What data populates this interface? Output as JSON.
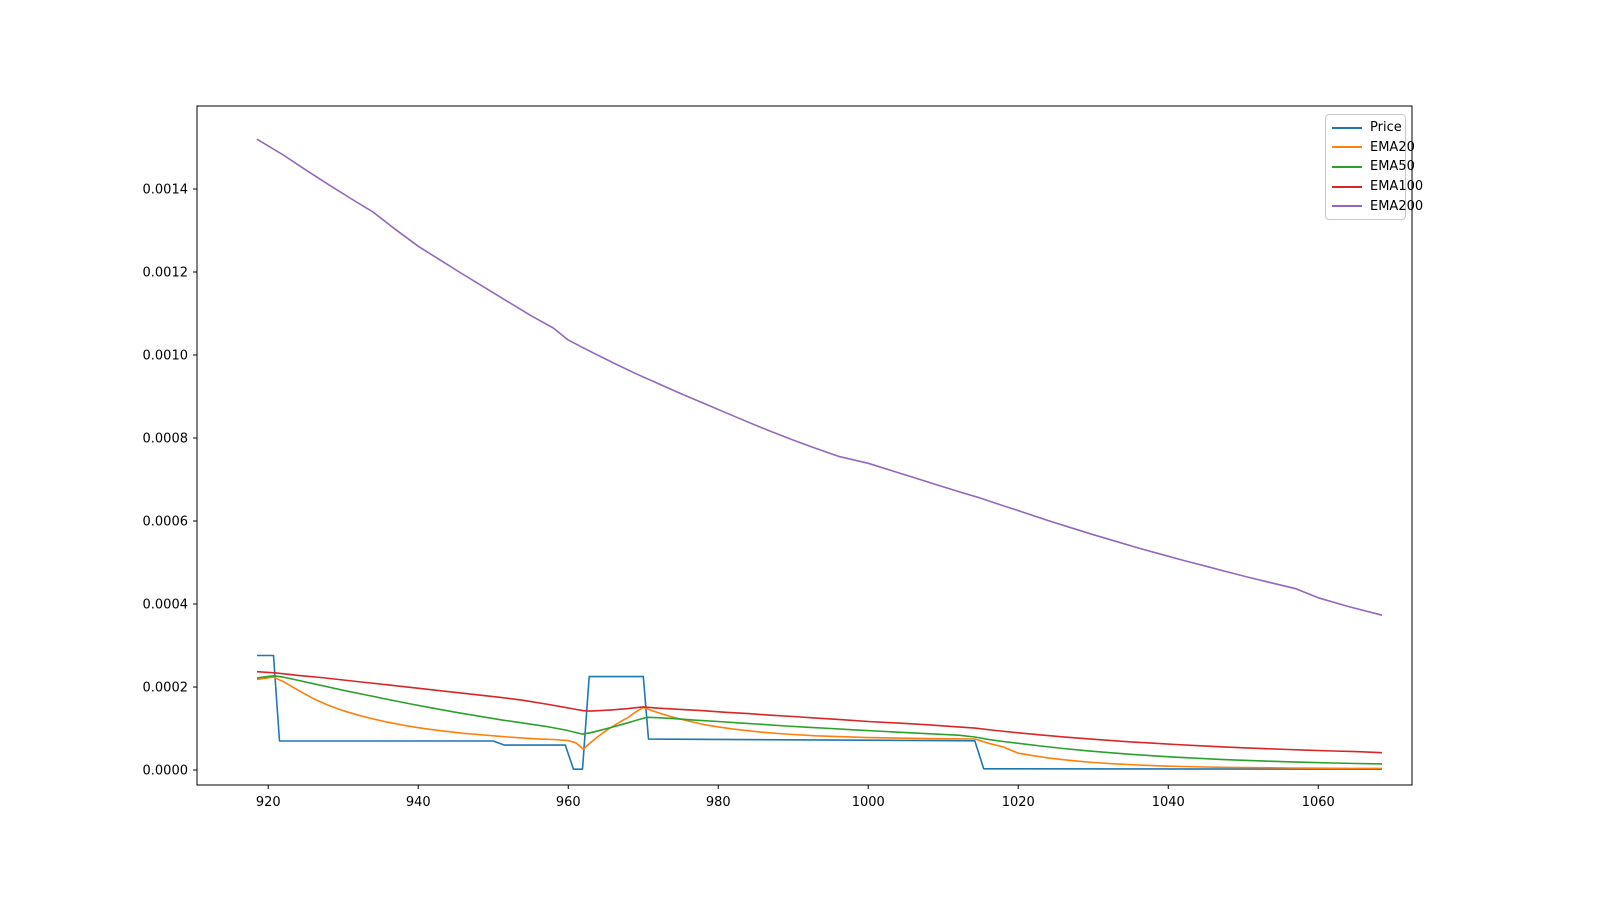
{
  "chart_data": {
    "type": "line",
    "title": "",
    "xlabel": "",
    "ylabel": "",
    "grid": false,
    "legend_position": "upper right",
    "xlim": [
      910.5,
      1072.5
    ],
    "ylim": [
      -3.61e-05,
      0.0016
    ],
    "x_ticks": [
      920,
      940,
      960,
      980,
      1000,
      1020,
      1040,
      1060
    ],
    "x_tick_labels": [
      "920",
      "940",
      "960",
      "980",
      "1000",
      "1020",
      "1040",
      "1060"
    ],
    "y_ticks": [
      0.0,
      0.0002,
      0.0004,
      0.0006,
      0.0008,
      0.001,
      0.0012,
      0.0014
    ],
    "y_tick_labels": [
      "0.0000",
      "0.0002",
      "0.0004",
      "0.0006",
      "0.0008",
      "0.0010",
      "0.0012",
      "0.0014"
    ],
    "series": [
      {
        "name": "Price",
        "color": "#1f77b4",
        "points": [
          [
            918.5,
            0.000276
          ],
          [
            920.7,
            0.000276
          ],
          [
            921.5,
            7e-05
          ],
          [
            950,
            7e-05
          ],
          [
            951.5,
            6e-05
          ],
          [
            959.6,
            6e-05
          ],
          [
            960.7,
            2e-06
          ],
          [
            961.9,
            2e-06
          ],
          [
            962.8,
            0.000225
          ],
          [
            970,
            0.000225
          ],
          [
            970.7,
            7.45e-05
          ],
          [
            1014.2,
            7.05e-05
          ],
          [
            1015.4,
            3e-06
          ],
          [
            1068.5,
            2e-06
          ]
        ]
      },
      {
        "name": "EMA20",
        "color": "#ff7f0e",
        "points": [
          [
            918.5,
            0.000218
          ],
          [
            920.7,
            0.000224
          ],
          [
            922,
            0.000213
          ],
          [
            924,
            0.000192
          ],
          [
            926,
            0.000172
          ],
          [
            928,
            0.000156
          ],
          [
            930,
            0.000143
          ],
          [
            932,
            0.000132
          ],
          [
            934,
            0.000123
          ],
          [
            936,
            0.000115
          ],
          [
            938,
            0.000108
          ],
          [
            940,
            0.000102
          ],
          [
            942,
            9.7e-05
          ],
          [
            944,
            9.25e-05
          ],
          [
            946,
            8.85e-05
          ],
          [
            948,
            8.55e-05
          ],
          [
            950,
            8.25e-05
          ],
          [
            952,
            7.95e-05
          ],
          [
            954,
            7.7e-05
          ],
          [
            956,
            7.5e-05
          ],
          [
            958,
            7.35e-05
          ],
          [
            960,
            7.1e-05
          ],
          [
            961,
            6.55e-05
          ],
          [
            962,
            5.05e-05
          ],
          [
            963,
            6.65e-05
          ],
          [
            964,
            8.1e-05
          ],
          [
            965,
            9.45e-05
          ],
          [
            966,
            0.000106
          ],
          [
            967,
            0.000117
          ],
          [
            968,
            0.000127
          ],
          [
            969,
            0.00014
          ],
          [
            970,
            0.000151
          ],
          [
            971,
            0.000144
          ],
          [
            972,
            0.000138
          ],
          [
            974,
            0.000127
          ],
          [
            976,
            0.000118
          ],
          [
            978,
            0.00011
          ],
          [
            980,
            0.000104
          ],
          [
            982,
            9.85e-05
          ],
          [
            984,
            9.45e-05
          ],
          [
            986,
            9.1e-05
          ],
          [
            988,
            8.8e-05
          ],
          [
            990,
            8.55e-05
          ],
          [
            993,
            8.25e-05
          ],
          [
            996,
            8.05e-05
          ],
          [
            1000,
            7.82e-05
          ],
          [
            1004,
            7.68e-05
          ],
          [
            1008,
            7.58e-05
          ],
          [
            1011,
            7.52e-05
          ],
          [
            1014.2,
            7.48e-05
          ],
          [
            1016,
            6.45e-05
          ],
          [
            1018,
            5.55e-05
          ],
          [
            1020,
            4.05e-05
          ],
          [
            1022,
            3.45e-05
          ],
          [
            1024,
            2.92e-05
          ],
          [
            1026,
            2.48e-05
          ],
          [
            1028,
            2.12e-05
          ],
          [
            1030,
            1.82e-05
          ],
          [
            1033,
            1.47e-05
          ],
          [
            1036,
            1.2e-05
          ],
          [
            1039,
            1e-05
          ],
          [
            1042,
            8.5e-06
          ],
          [
            1045,
            7.3e-06
          ],
          [
            1048,
            6.4e-06
          ],
          [
            1052,
            5.5e-06
          ],
          [
            1056,
            4.8e-06
          ],
          [
            1060,
            4.3e-06
          ],
          [
            1064,
            4e-06
          ],
          [
            1068.5,
            3.8e-06
          ]
        ]
      },
      {
        "name": "EMA50",
        "color": "#2ca02c",
        "points": [
          [
            918.5,
            0.000222
          ],
          [
            920.7,
            0.000227
          ],
          [
            922,
            0.000224
          ],
          [
            924,
            0.000216
          ],
          [
            926,
            0.000208
          ],
          [
            928,
            0.0002
          ],
          [
            930,
            0.000192
          ],
          [
            933,
            0.000181
          ],
          [
            936,
            0.00017
          ],
          [
            939,
            0.000159
          ],
          [
            942,
            0.000149
          ],
          [
            945,
            0.000139
          ],
          [
            948,
            0.00013
          ],
          [
            951,
            0.000121
          ],
          [
            954,
            0.000113
          ],
          [
            957,
            0.000105
          ],
          [
            959.6,
            9.65e-05
          ],
          [
            961.9,
            8.65e-05
          ],
          [
            963,
            9e-05
          ],
          [
            964,
            9.45e-05
          ],
          [
            966,
            0.000104
          ],
          [
            968,
            0.000114
          ],
          [
            969.5,
            0.000122
          ],
          [
            970.5,
            0.000127
          ],
          [
            972,
            0.000126
          ],
          [
            974,
            0.000124
          ],
          [
            977,
            0.00012
          ],
          [
            980,
            0.000117
          ],
          [
            983,
            0.000113
          ],
          [
            986,
            0.00011
          ],
          [
            989,
            0.000106
          ],
          [
            992,
            0.000103
          ],
          [
            995,
            0.0001
          ],
          [
            998,
            9.7e-05
          ],
          [
            1001,
            9.4e-05
          ],
          [
            1004,
            9.12e-05
          ],
          [
            1007,
            8.85e-05
          ],
          [
            1010,
            8.58e-05
          ],
          [
            1012,
            8.4e-05
          ],
          [
            1014.2,
            7.95e-05
          ],
          [
            1016,
            7.38e-05
          ],
          [
            1018,
            6.88e-05
          ],
          [
            1020,
            6.43e-05
          ],
          [
            1023,
            5.78e-05
          ],
          [
            1026,
            5.18e-05
          ],
          [
            1029,
            4.65e-05
          ],
          [
            1032,
            4.19e-05
          ],
          [
            1035,
            3.78e-05
          ],
          [
            1038,
            3.42e-05
          ],
          [
            1041,
            3.1e-05
          ],
          [
            1044,
            2.82e-05
          ],
          [
            1047,
            2.57e-05
          ],
          [
            1050,
            2.35e-05
          ],
          [
            1053,
            2.15e-05
          ],
          [
            1056,
            1.98e-05
          ],
          [
            1059,
            1.83e-05
          ],
          [
            1062,
            1.7e-05
          ],
          [
            1065,
            1.58e-05
          ],
          [
            1068.5,
            1.48e-05
          ]
        ]
      },
      {
        "name": "EMA100",
        "color": "#d62728",
        "points": [
          [
            918.5,
            0.000237
          ],
          [
            921,
            0.000234
          ],
          [
            924,
            0.000228
          ],
          [
            927,
            0.000223
          ],
          [
            930,
            0.000217
          ],
          [
            933,
            0.000211
          ],
          [
            936,
            0.000205
          ],
          [
            939,
            0.000199
          ],
          [
            942,
            0.000193
          ],
          [
            945,
            0.000187
          ],
          [
            948,
            0.000181
          ],
          [
            951,
            0.000175
          ],
          [
            954,
            0.000168
          ],
          [
            957,
            0.000159
          ],
          [
            959.6,
            0.000151
          ],
          [
            961,
            0.000146
          ],
          [
            962,
            0.000143
          ],
          [
            963,
            0.000142
          ],
          [
            964,
            0.000143
          ],
          [
            966,
            0.000145
          ],
          [
            968,
            0.000148
          ],
          [
            970,
            0.000152
          ],
          [
            972,
            0.000149
          ],
          [
            975,
            0.000146
          ],
          [
            978,
            0.000143
          ],
          [
            981,
            0.000139
          ],
          [
            984,
            0.000136
          ],
          [
            987,
            0.000132
          ],
          [
            990,
            0.000129
          ],
          [
            993,
            0.000125
          ],
          [
            996,
            0.000122
          ],
          [
            1000,
            0.000117
          ],
          [
            1004,
            0.000113
          ],
          [
            1008,
            0.000109
          ],
          [
            1011,
            0.000105
          ],
          [
            1014.2,
            0.000101
          ],
          [
            1017,
            9.52e-05
          ],
          [
            1020,
            8.97e-05
          ],
          [
            1023,
            8.45e-05
          ],
          [
            1026,
            7.98e-05
          ],
          [
            1029,
            7.55e-05
          ],
          [
            1032,
            7.15e-05
          ],
          [
            1035,
            6.78e-05
          ],
          [
            1038,
            6.45e-05
          ],
          [
            1041,
            6.14e-05
          ],
          [
            1044,
            5.86e-05
          ],
          [
            1047,
            5.6e-05
          ],
          [
            1050,
            5.36e-05
          ],
          [
            1053,
            5.14e-05
          ],
          [
            1056,
            4.94e-05
          ],
          [
            1059,
            4.76e-05
          ],
          [
            1062,
            4.59e-05
          ],
          [
            1065,
            4.44e-05
          ],
          [
            1068.5,
            4.17e-05
          ]
        ]
      },
      {
        "name": "EMA200",
        "color": "#9467bd",
        "points": [
          [
            918.5,
            0.00152
          ],
          [
            922,
            0.001482
          ],
          [
            925,
            0.001446
          ],
          [
            928,
            0.001411
          ],
          [
            931,
            0.001377
          ],
          [
            934,
            0.001344
          ],
          [
            937,
            0.001302
          ],
          [
            940,
            0.001262
          ],
          [
            943,
            0.001228
          ],
          [
            946,
            0.001194
          ],
          [
            949,
            0.001161
          ],
          [
            952,
            0.001128
          ],
          [
            955,
            0.001095
          ],
          [
            958,
            0.001065
          ],
          [
            960,
            0.001036
          ],
          [
            963,
            0.001008
          ],
          [
            966,
            0.000981
          ],
          [
            969,
            0.000955
          ],
          [
            972,
            0.000931
          ],
          [
            975,
            0.000907
          ],
          [
            978,
            0.000884
          ],
          [
            981,
            0.000861
          ],
          [
            984,
            0.000838
          ],
          [
            987,
            0.000816
          ],
          [
            990,
            0.000795
          ],
          [
            993,
            0.000775
          ],
          [
            996,
            0.000756
          ],
          [
            1000,
            0.000739
          ],
          [
            1003,
            0.000722
          ],
          [
            1006,
            0.000705
          ],
          [
            1009,
            0.000688
          ],
          [
            1012,
            0.000671
          ],
          [
            1015,
            0.000655
          ],
          [
            1018,
            0.000637
          ],
          [
            1021,
            0.000619
          ],
          [
            1024,
            0.000601
          ],
          [
            1027,
            0.000584
          ],
          [
            1030,
            0.000567
          ],
          [
            1033,
            0.000551
          ],
          [
            1036,
            0.000535
          ],
          [
            1039,
            0.00052
          ],
          [
            1042,
            0.000505
          ],
          [
            1045,
            0.000491
          ],
          [
            1048,
            0.000477
          ],
          [
            1051,
            0.000463
          ],
          [
            1054,
            0.00045
          ],
          [
            1057,
            0.000437
          ],
          [
            1060,
            0.000415
          ],
          [
            1064,
            0.000394
          ],
          [
            1068.5,
            0.000373
          ]
        ]
      }
    ]
  },
  "layout_colors": {
    "axes_frame": "#000000",
    "tick": "#000000",
    "background": "#ffffff",
    "legend_border": "#c9c9c9"
  }
}
